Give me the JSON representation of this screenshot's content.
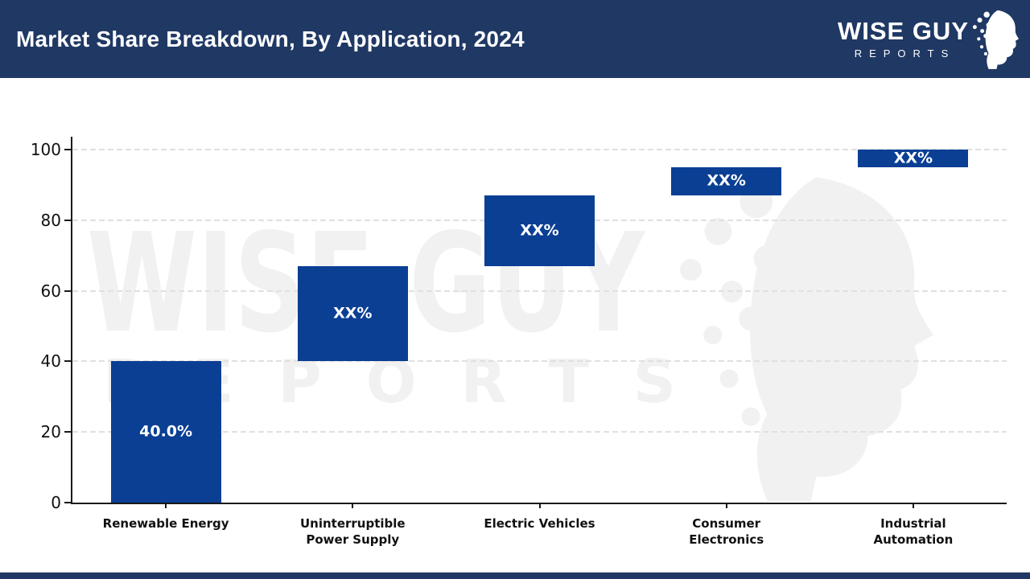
{
  "header": {
    "title": "Market Share Breakdown, By Application, 2024"
  },
  "logo": {
    "wordmark": "WISE GUY",
    "subtext": "REPORTS"
  },
  "watermark": {
    "wordmark": "WISE GUY",
    "subtext": "REPORTS"
  },
  "colors": {
    "header_bg": "#1f3864",
    "bar_fill": "#0a3f94",
    "bar_label_text": "#ffffff",
    "grid_line": "#e0e0e0",
    "axis_line": "#1a1a1a",
    "tick_text": "#111111",
    "watermark": "#f1f1f1",
    "footer_bg": "#1f3864"
  },
  "chart_data": {
    "type": "bar",
    "subtype": "waterfall",
    "title": "Market Share Breakdown, By Application, 2024",
    "categories": [
      "Renewable Energy",
      "Uninterruptible\nPower Supply",
      "Electric Vehicles",
      "Consumer\nElectronics",
      "Industrial\nAutomation"
    ],
    "segments": [
      {
        "category": "Renewable Energy",
        "start": 0,
        "end": 40,
        "label": "40.0%"
      },
      {
        "category": "Uninterruptible Power Supply",
        "start": 40,
        "end": 67,
        "label": "XX%"
      },
      {
        "category": "Electric Vehicles",
        "start": 67,
        "end": 87,
        "label": "XX%"
      },
      {
        "category": "Consumer Electronics",
        "start": 87,
        "end": 95,
        "label": "XX%"
      },
      {
        "category": "Industrial Automation",
        "start": 95,
        "end": 100,
        "label": "XX%"
      }
    ],
    "xlabel": "",
    "ylabel": "",
    "yticks": [
      0,
      20,
      40,
      60,
      80,
      100
    ],
    "ylim": [
      0,
      103.6
    ],
    "grid": "dashed-horizontal",
    "legend": "none"
  }
}
